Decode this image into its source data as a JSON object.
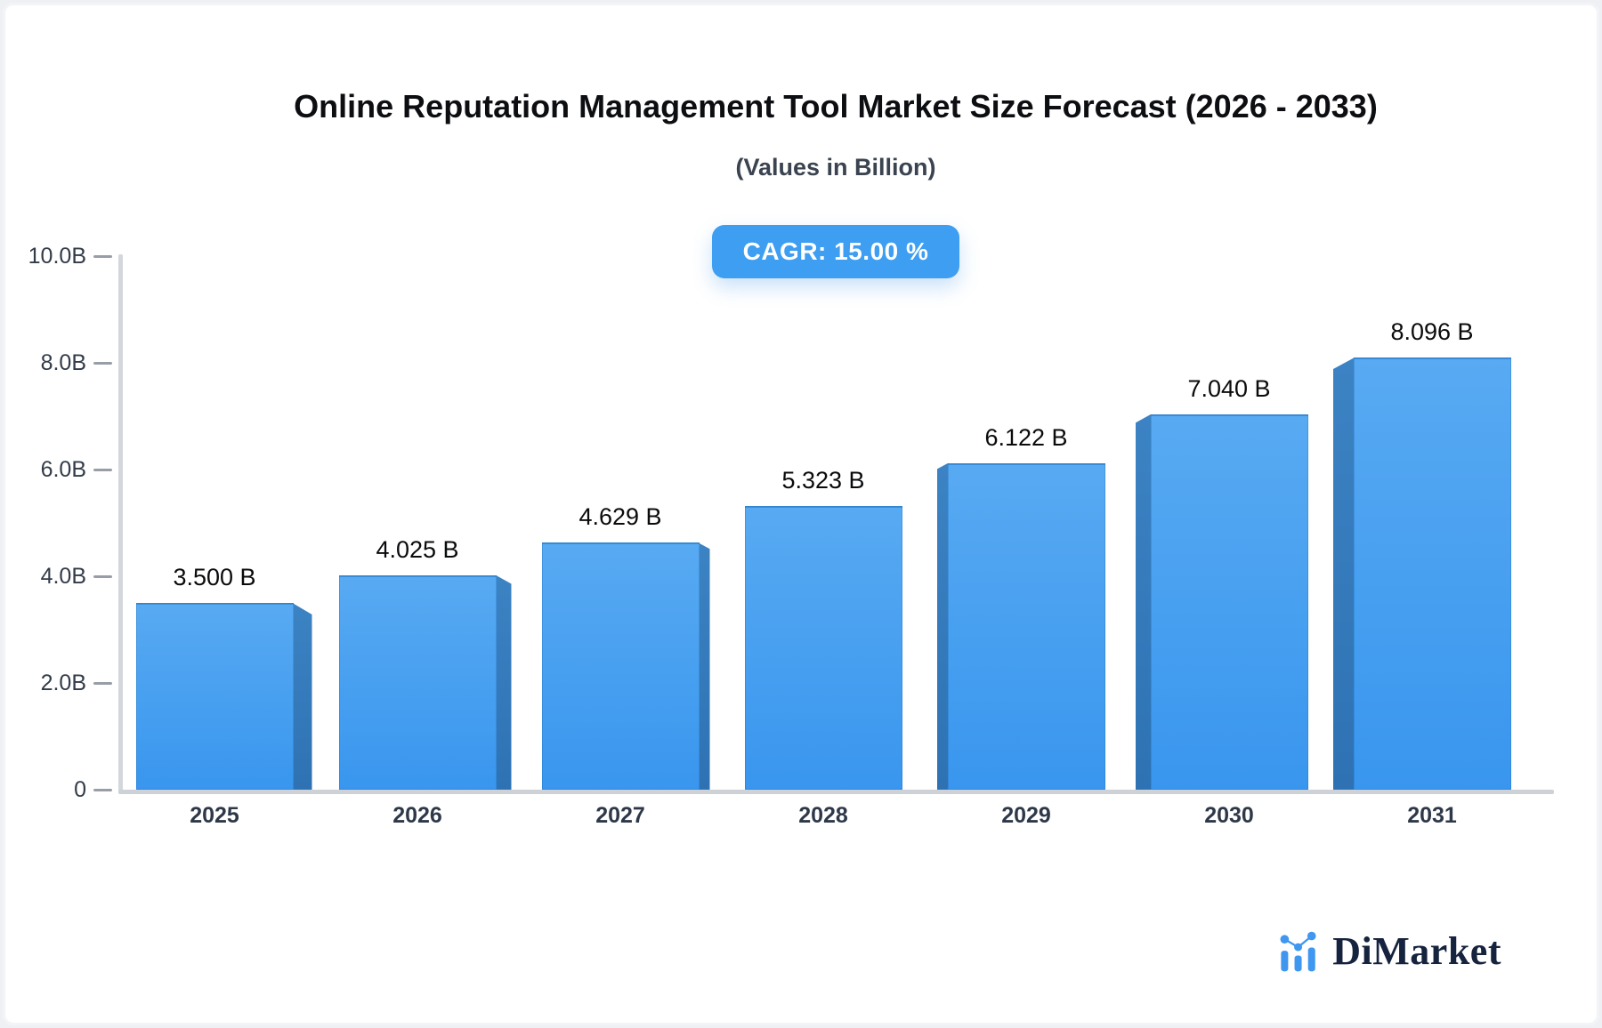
{
  "chart_data": {
    "type": "bar",
    "title": "Online Reputation Management Tool Market Size Forecast (2026 - 2033)",
    "subtitle": "(Values in Billion)",
    "annotation_badge": "CAGR: 15.00 %",
    "categories": [
      "2025",
      "2026",
      "2027",
      "2028",
      "2029",
      "2030",
      "2031"
    ],
    "values": [
      3.5,
      4.025,
      4.629,
      5.323,
      6.122,
      7.04,
      8.096
    ],
    "value_labels": [
      "3.500 B",
      "4.025 B",
      "4.629 B",
      "5.323 B",
      "6.122 B",
      "7.040 B",
      "8.096 B"
    ],
    "unit": "Billion",
    "ylim": [
      0,
      10
    ],
    "yticks": [
      {
        "value": 0,
        "label": "0"
      },
      {
        "value": 2,
        "label": "2.0B"
      },
      {
        "value": 4,
        "label": "4.0B"
      },
      {
        "value": 6,
        "label": "6.0B"
      },
      {
        "value": 8,
        "label": "8.0B"
      },
      {
        "value": 10,
        "label": "10.0B"
      }
    ],
    "grid": false,
    "legend": "none",
    "style_3d": true,
    "colors": {
      "bar_face_top": "#58aaf2",
      "bar_face_bottom": "#3996ee",
      "bar_side_top": "#3c83c4",
      "bar_side_bottom": "#2e72b3",
      "badge_background": "#3d9ef2",
      "badge_text": "#ffffff",
      "axis": "#d3d6db",
      "tick": "#989ea7",
      "title_text": "#0c0e11",
      "subtitle_text": "#3a434f",
      "value_label_text": "#0a0b0d",
      "year_label_text": "#2e3849"
    }
  },
  "branding": {
    "logo_text": "DiMarket",
    "logo_icon": "bar-chart-logo-icon",
    "logo_icon_color": "#3f97f0",
    "logo_text_color": "#16233e"
  }
}
